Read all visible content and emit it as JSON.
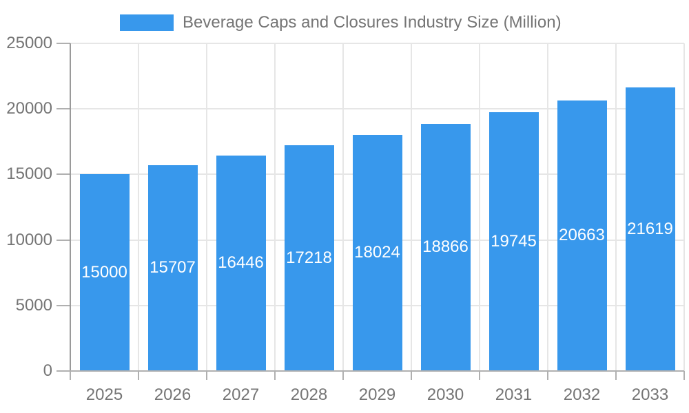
{
  "chart_data": {
    "type": "bar",
    "title": "Beverage Caps and Closures Industry Size (Million)",
    "categories": [
      "2025",
      "2026",
      "2027",
      "2028",
      "2029",
      "2030",
      "2031",
      "2032",
      "2033"
    ],
    "values": [
      15000,
      15707,
      16446,
      17218,
      18024,
      18866,
      19745,
      20663,
      21619
    ],
    "bar_value_labels": [
      "15000",
      "15707",
      "16446",
      "17218",
      "18024",
      "18866",
      "19745",
      "20663",
      "21619"
    ],
    "xlabel": "",
    "ylabel": "",
    "ylim": [
      0,
      25000
    ],
    "yticks": [
      0,
      5000,
      10000,
      15000,
      20000,
      25000
    ],
    "ytick_labels": [
      "0",
      "5000",
      "10000",
      "15000",
      "20000",
      "25000"
    ],
    "grid": true,
    "legend_position": "top",
    "colors": {
      "bar": "#3898EC",
      "text": "#757575",
      "grid": "#e6e6e6",
      "axis_line": "#9a9a9a",
      "tick": "#b0b0b0",
      "bar_label": "#ffffff",
      "background": "#ffffff"
    }
  }
}
